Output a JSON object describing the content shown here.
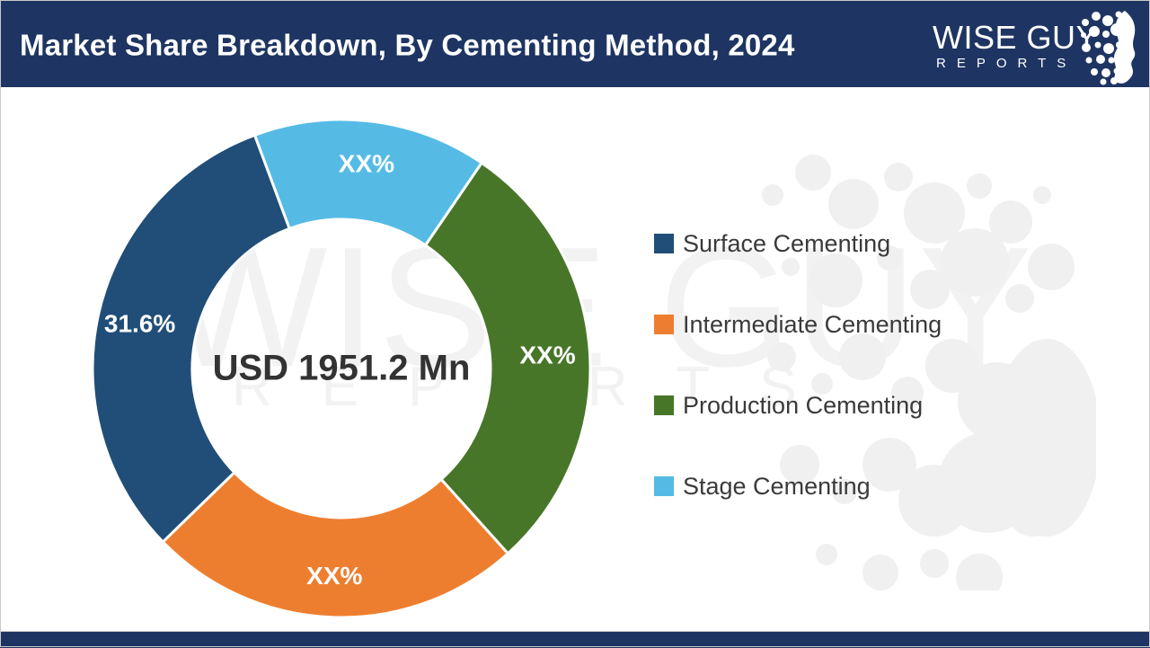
{
  "header": {
    "title": "Market Share Breakdown, By Cementing Method, 2024",
    "bg_color": "#1E3563",
    "logo": {
      "line1": "WISE GUY",
      "line2": "REPORTS"
    }
  },
  "watermark": {
    "line1": "WISE GUY",
    "line2": "REPORTS",
    "color": "#f2f2f2"
  },
  "chart_data": {
    "type": "pie",
    "subtype": "donut",
    "title": "Market Share Breakdown, By Cementing Method, 2024",
    "center_label": "USD 1951.2 Mn",
    "units": "percent market share",
    "start_angle_deg": -20.4,
    "legend_position": "right",
    "draw_order": [
      "Stage Cementing",
      "Production Cementing",
      "Intermediate Cementing",
      "Surface Cementing"
    ],
    "segments": [
      {
        "label": "Surface Cementing",
        "value_pct": 31.6,
        "display_label": "31.6%",
        "color": "#204E78"
      },
      {
        "label": "Intermediate Cementing",
        "value_pct": 24.4,
        "display_label": "XX%",
        "color": "#EE7E2F"
      },
      {
        "label": "Production Cementing",
        "value_pct": 28.8,
        "display_label": "XX%",
        "color": "#487628"
      },
      {
        "label": "Stage Cementing",
        "value_pct": 15.2,
        "display_label": "XX%",
        "color": "#55BBE5"
      }
    ]
  },
  "footer": {
    "bg_color": "#1E3563"
  }
}
